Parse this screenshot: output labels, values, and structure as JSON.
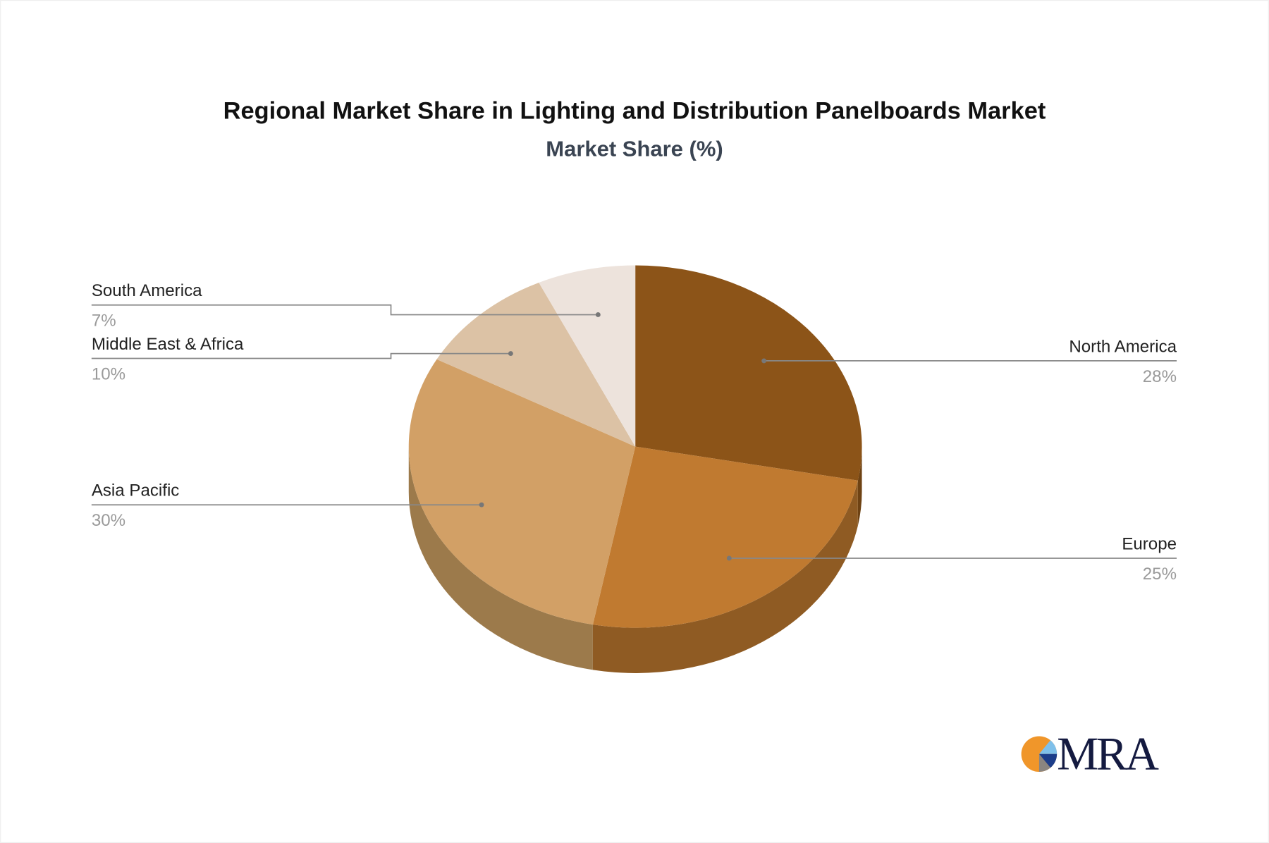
{
  "chart_data": {
    "type": "pie",
    "style": "3d",
    "title": "Regional Market Share in Lighting and Distribution Panelboards Market",
    "subtitle": "Market Share (%)",
    "categories": [
      "North America",
      "Europe",
      "Asia Pacific",
      "Middle East & Africa",
      "South America"
    ],
    "values": [
      28,
      25,
      30,
      10,
      7
    ],
    "value_labels": [
      "28%",
      "25%",
      "30%",
      "10%",
      "7%"
    ],
    "colors": [
      "#8c5418",
      "#c07a30",
      "#d2a066",
      "#dcc2a5",
      "#ede3dc"
    ],
    "side_colors": [
      "#6e4213",
      "#8f5b23",
      "#9c7a4b",
      "#a8937b",
      "#b5aba3"
    ],
    "legend": "leader-line labels"
  },
  "logo": {
    "text": "MRA",
    "colors": [
      "#f0962a",
      "#7fc0ea",
      "#1c3d8a",
      "#8a8580"
    ]
  }
}
